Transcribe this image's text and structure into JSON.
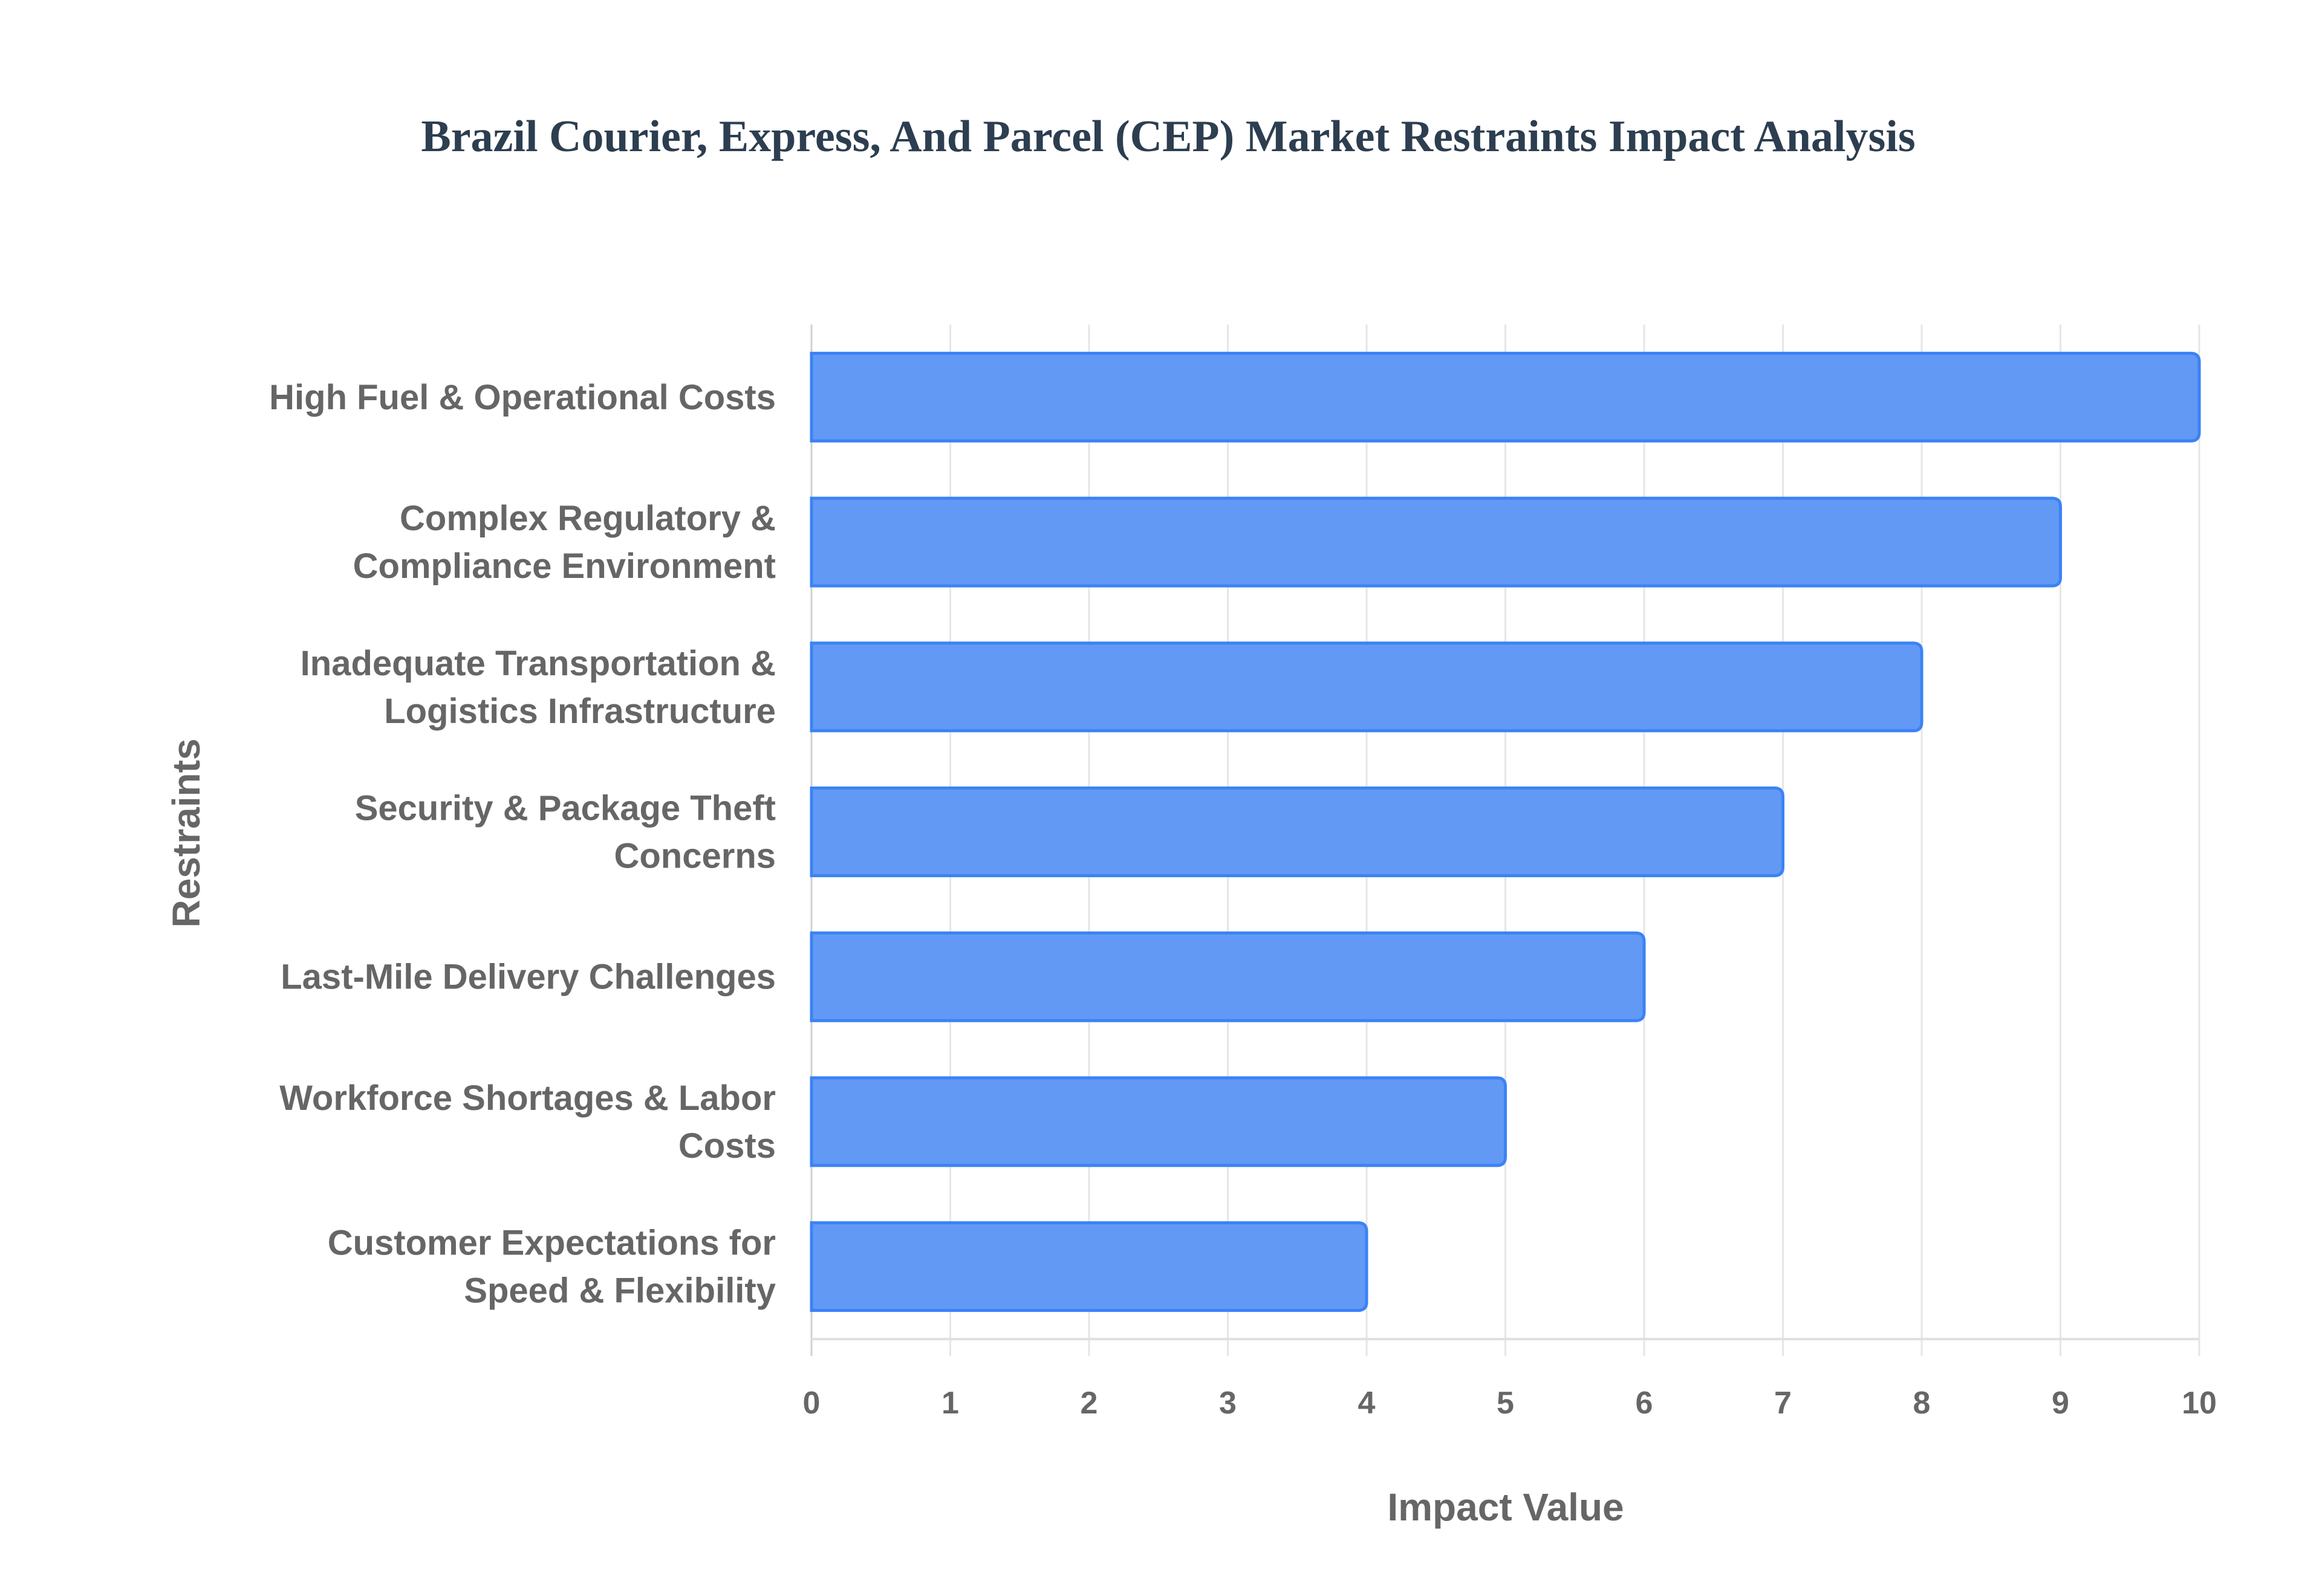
{
  "chart_data": {
    "type": "bar",
    "orientation": "horizontal",
    "title": "Brazil Courier, Express, And Parcel (CEP) Market Restraints Impact Analysis",
    "xlabel": "Impact Value",
    "ylabel": "Restraints",
    "categories": [
      [
        "High Fuel & Operational Costs"
      ],
      [
        "Complex Regulatory &",
        "Compliance Environment"
      ],
      [
        "Inadequate Transportation &",
        "Logistics Infrastructure"
      ],
      [
        "Security & Package Theft",
        "Concerns"
      ],
      [
        "Last-Mile Delivery Challenges"
      ],
      [
        "Workforce Shortages & Labor",
        "Costs"
      ],
      [
        "Customer Expectations for",
        "Speed & Flexibility"
      ]
    ],
    "values": [
      10,
      9,
      8,
      7,
      6,
      5,
      4
    ],
    "xlim": [
      0,
      10
    ],
    "xticks": [
      "0",
      "1",
      "2",
      "3",
      "4",
      "5",
      "6",
      "7",
      "8",
      "9",
      "10"
    ],
    "grid": true,
    "bar_color": "#6299f5",
    "bar_border_color": "#3b82f6"
  }
}
